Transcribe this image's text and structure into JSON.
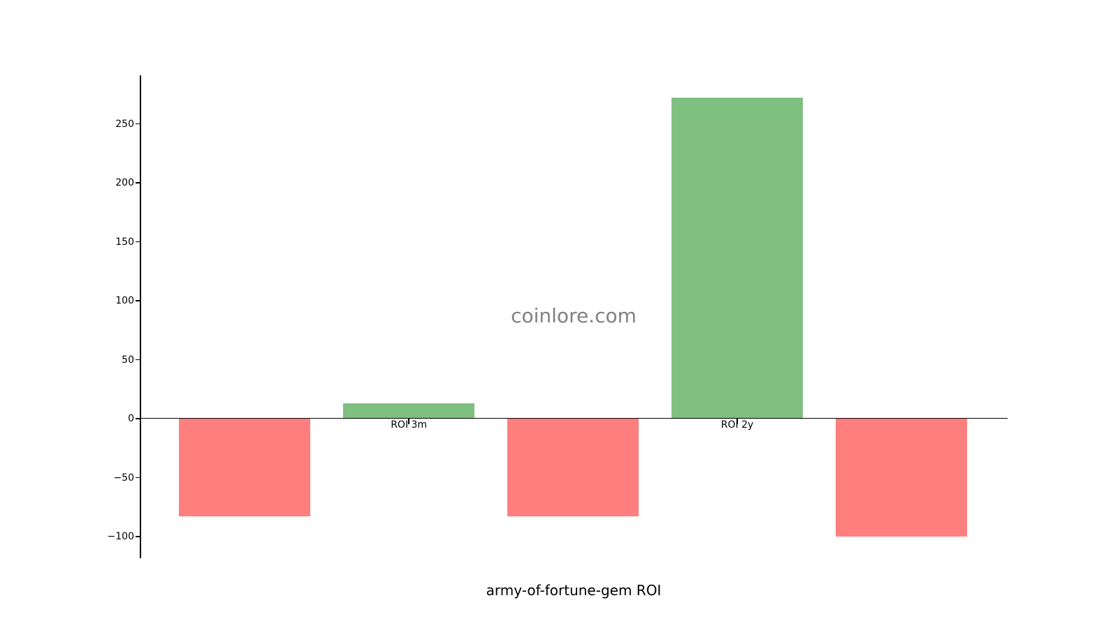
{
  "watermark": {
    "text": "coinlore.com",
    "color": "#808080"
  },
  "chart_data": {
    "type": "bar",
    "title": "",
    "xlabel": "army-of-fortune-gem ROI",
    "ylabel": "",
    "categories": [
      "",
      "ROI 3m",
      "",
      "ROI 2y",
      ""
    ],
    "values": [
      -83,
      13,
      -83,
      272,
      -100
    ],
    "bar_colors": [
      "#ff7f7f",
      "#7fbf7f",
      "#ff7f7f",
      "#7fbf7f",
      "#ff7f7f"
    ],
    "positive_color": "#7fbf7f",
    "negative_color": "#ff7f7f",
    "axis_color": "#000000",
    "y_ticks": [
      250,
      200,
      150,
      100,
      50,
      0,
      -50,
      -100
    ],
    "y_tick_labels": [
      "250",
      "200",
      "150",
      "100",
      "50",
      "0",
      "−50",
      "−100"
    ],
    "x_ticks": [
      {
        "label": "ROI 3m",
        "bar_index": 1
      },
      {
        "label": "ROI 2y",
        "bar_index": 3
      }
    ],
    "ylim": [
      -118,
      291
    ],
    "grid": false,
    "legend": null
  }
}
